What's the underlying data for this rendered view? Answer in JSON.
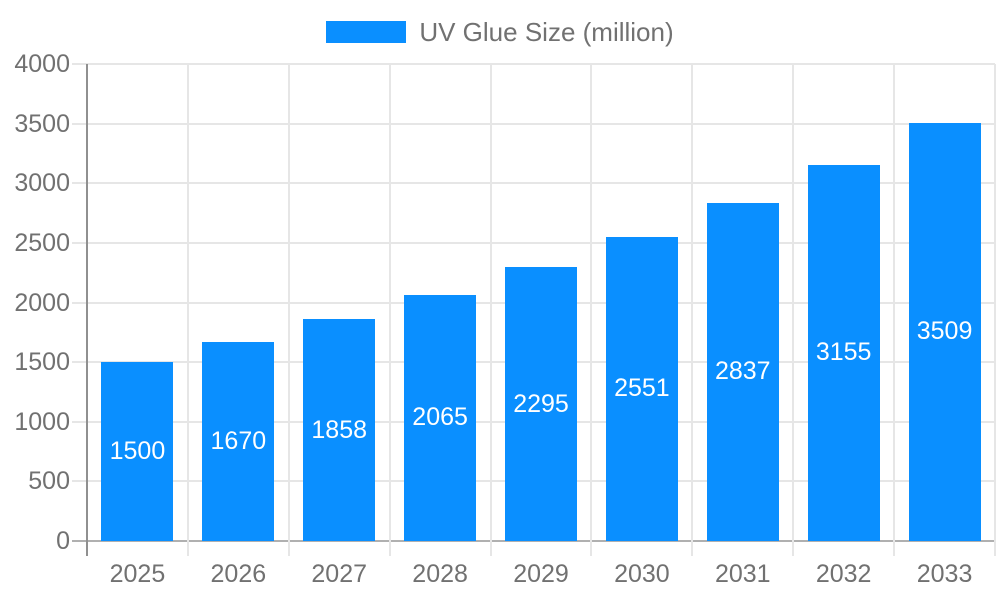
{
  "chart_data": {
    "type": "bar",
    "title": "UV Glue Size (million)",
    "legend": {
      "label": "UV Glue Size (million)",
      "position": "top"
    },
    "categories": [
      "2025",
      "2026",
      "2027",
      "2028",
      "2029",
      "2030",
      "2031",
      "2032",
      "2033"
    ],
    "series": [
      {
        "name": "UV Glue Size (million)",
        "values": [
          1500,
          1670,
          1858,
          2065,
          2295,
          2551,
          2837,
          3155,
          3509
        ]
      }
    ],
    "xlabel": "",
    "ylabel": "",
    "ylim": [
      0,
      4000
    ],
    "yticks": [
      0,
      500,
      1000,
      1500,
      2000,
      2500,
      3000,
      3500,
      4000
    ],
    "grid": true,
    "value_labels": "centered-inside-bars",
    "colors": {
      "bar": "#0a8fff",
      "value_label": "#ffffff",
      "axis_text": "#717171",
      "legend_text": "#717171",
      "grid_line": "#e6e6e6",
      "axis_line": "#909090",
      "baseline": "#b0b0b0",
      "background": "#ffffff"
    }
  }
}
